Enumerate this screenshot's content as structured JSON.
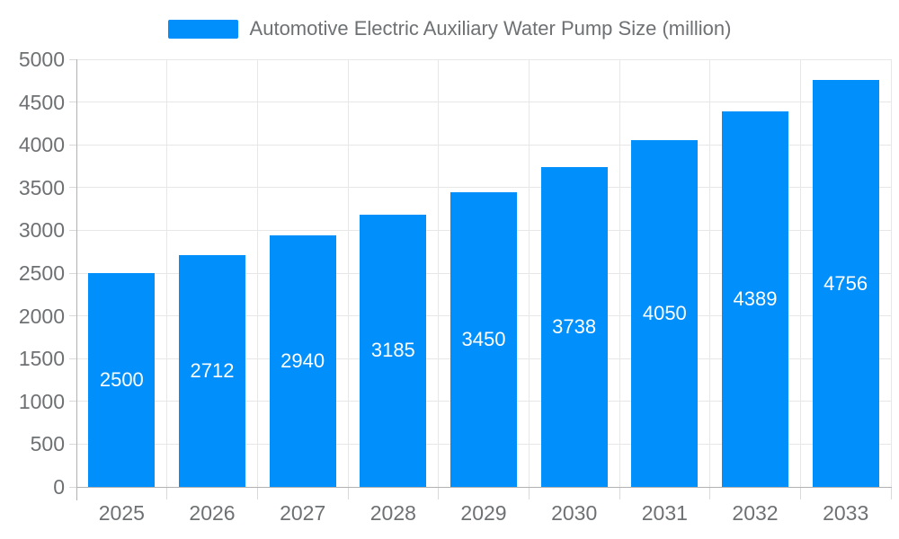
{
  "legend": {
    "label": "Automotive Electric Auxiliary Water Pump Size (million)",
    "swatch_color": "#008FFB"
  },
  "chart_data": {
    "type": "bar",
    "title": "Automotive Electric Auxiliary Water Pump Size (million)",
    "categories": [
      "2025",
      "2026",
      "2027",
      "2028",
      "2029",
      "2030",
      "2031",
      "2032",
      "2033"
    ],
    "values": [
      2500,
      2712,
      2940,
      3185,
      3450,
      3738,
      4050,
      4389,
      4756
    ],
    "value_labels": [
      "2500",
      "2712",
      "2940",
      "3185",
      "3450",
      "3738",
      "4050",
      "4389",
      "4756"
    ],
    "xlabel": "",
    "ylabel": "",
    "ylim": [
      0,
      5000
    ],
    "ytick_step": 500,
    "ytick_labels": [
      "0",
      "500",
      "1000",
      "1500",
      "2000",
      "2500",
      "3000",
      "3500",
      "4000",
      "4500",
      "5000"
    ],
    "grid": true,
    "legend_position": "top",
    "bar_color": "#008FFB",
    "value_label_color": "#FFFFFF"
  },
  "colors": {
    "background": "#FFFFFF",
    "axis_label_text": "#6E7173",
    "title_text": "#6E7173",
    "gridline": "#E7E7E7",
    "axis_line": "#B1B1B1",
    "tick": "#D9D9D9"
  }
}
